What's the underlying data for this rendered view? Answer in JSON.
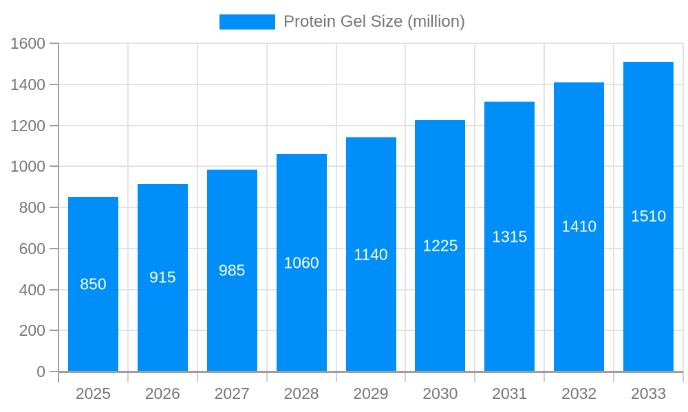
{
  "chart_data": {
    "type": "bar",
    "title": "Protein Gel Size (million)",
    "legend_entries": [
      "Protein Gel Size (million)"
    ],
    "categories": [
      "2025",
      "2026",
      "2027",
      "2028",
      "2029",
      "2030",
      "2031",
      "2032",
      "2033"
    ],
    "values": [
      850,
      915,
      985,
      1060,
      1140,
      1225,
      1315,
      1410,
      1510
    ],
    "xlabel": "",
    "ylabel": "",
    "ylim": [
      0,
      1600
    ],
    "yticks": [
      0,
      200,
      400,
      600,
      800,
      1000,
      1200,
      1400,
      1600
    ],
    "grid": true,
    "legend_position": "top-center",
    "value_label_position": "inside-center",
    "colors": {
      "bar": "#008FF8",
      "grid": "#E3E3E3",
      "axis": "#9E9E9E",
      "minor_tick": "#CCCCCC",
      "axis_label": "#757575",
      "value_label": "#FFFFFF",
      "background": "#FFFFFF"
    }
  }
}
